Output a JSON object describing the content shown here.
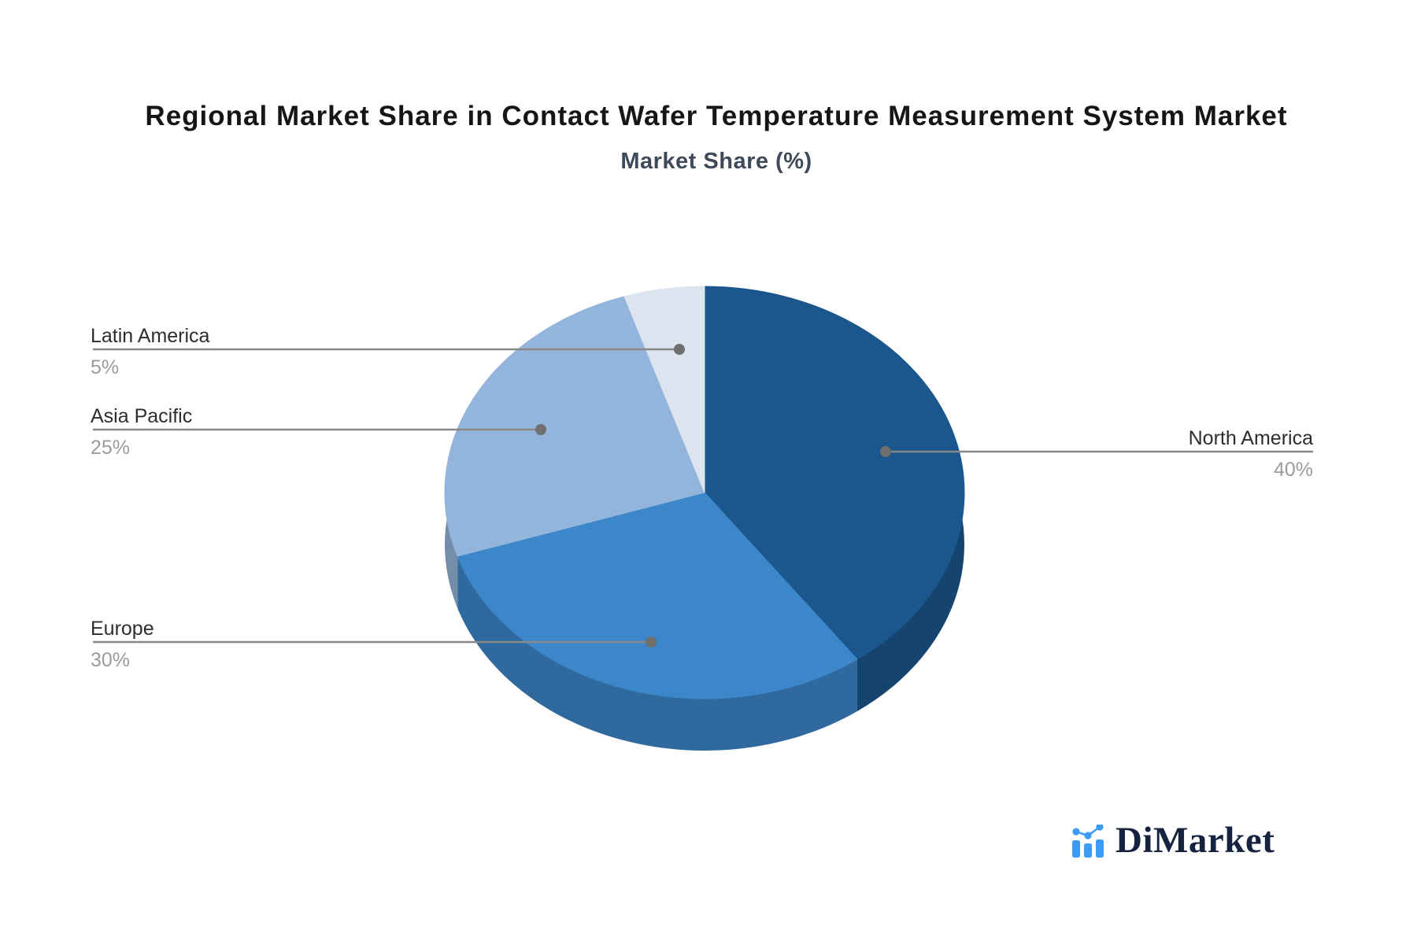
{
  "header": {
    "title": "Regional Market Share in Contact Wafer Temperature Measurement System Market",
    "subtitle": "Market Share (%)"
  },
  "chart_data": {
    "type": "pie",
    "style": "3d",
    "title": "Regional Market Share in Contact Wafer Temperature Measurement System Market",
    "subtitle": "Market Share (%)",
    "unit": "%",
    "start_angle_deg": 0,
    "direction": "clockwise",
    "legend_position": "callout-labels",
    "series": [
      {
        "name": "North America",
        "value": 40,
        "color": "#1B578D"
      },
      {
        "name": "Europe",
        "value": 30,
        "color": "#3C87CA"
      },
      {
        "name": "Asia Pacific",
        "value": 25,
        "color": "#93B5DB"
      },
      {
        "name": "Latin America",
        "value": 5,
        "color": "#DCE4F0"
      }
    ]
  },
  "callouts": [
    {
      "label": "North America",
      "value_text": "40%"
    },
    {
      "label": "Europe",
      "value_text": "30%"
    },
    {
      "label": "Asia Pacific",
      "value_text": "25%"
    },
    {
      "label": "Latin America",
      "value_text": "5%"
    }
  ],
  "logo": {
    "text": "DiMarket",
    "icon": "bar-chart-with-trend-dots-icon",
    "icon_color": "#3D9BF5",
    "text_color": "#15233E"
  },
  "colors": {
    "leader_line": "#888888",
    "leader_dot": "#6F6F6F",
    "subtitle_text": "#3E4A59",
    "value_text": "#9B9B9B"
  }
}
